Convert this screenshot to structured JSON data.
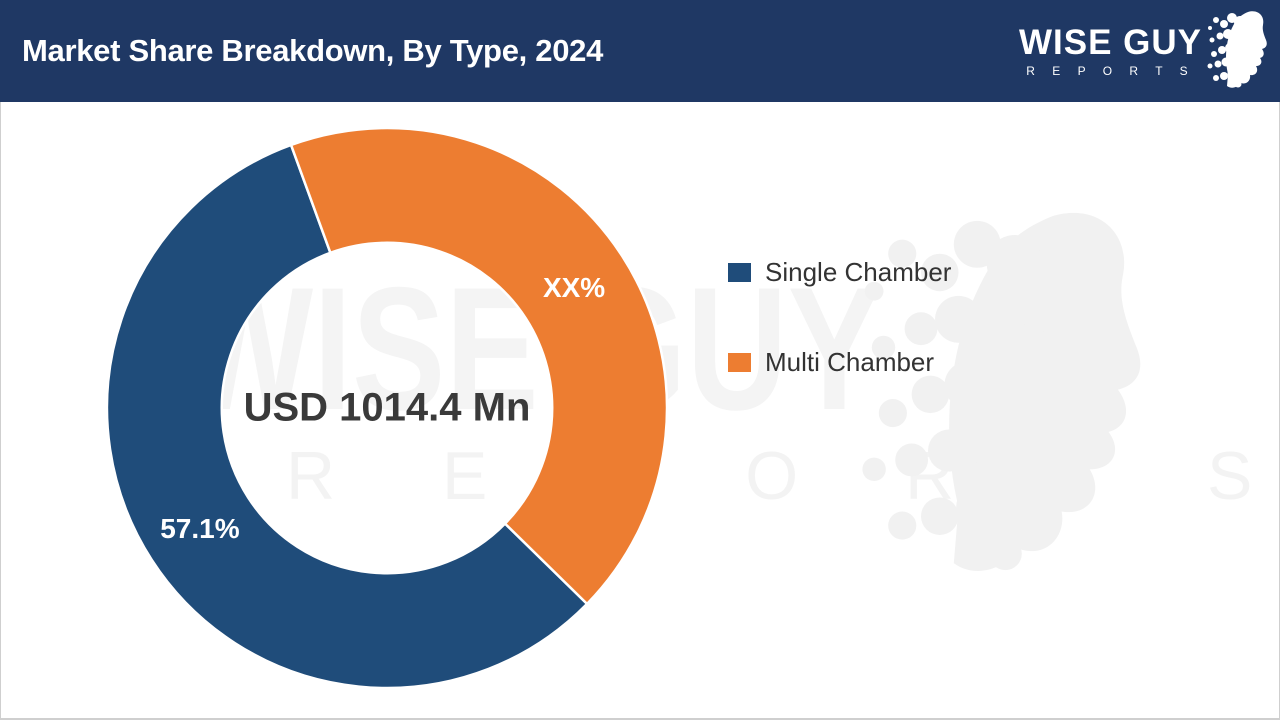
{
  "header": {
    "title": "Market Share Breakdown, By Type, 2024",
    "logo": {
      "name": "WISE GUY",
      "tagline": "R E P O R T S"
    }
  },
  "watermark": {
    "big_text": "WISE GUY",
    "sub_text": "R E P O R T S"
  },
  "chart_data": {
    "type": "pie",
    "subtype": "donut",
    "title": "Market Share Breakdown, By Type, 2024",
    "center_label": "USD 1014.4 Mn",
    "rotation_deg_clockwise_from_top": 134.4,
    "inner_radius_ratio": 0.59,
    "slices": [
      {
        "name": "Single Chamber",
        "value": 57.1,
        "display_label": "57.1%",
        "color": "#1f4c7a"
      },
      {
        "name": "Multi Chamber",
        "value": 42.9,
        "display_label": "XX%",
        "color": "#ed7d31"
      }
    ],
    "legend_position": "right",
    "slice_label_color": "#ffffff"
  },
  "legend": {
    "items": [
      {
        "label": "Single Chamber",
        "color": "#1f4c7a"
      },
      {
        "label": "Multi Chamber",
        "color": "#ed7d31"
      }
    ]
  },
  "colors": {
    "header_bg": "#1f3864",
    "slice_blue": "#1f4c7a",
    "slice_orange": "#ed7d31",
    "center_text": "#3a3a3a",
    "legend_text": "#333333",
    "watermark": "#f4f4f4"
  }
}
